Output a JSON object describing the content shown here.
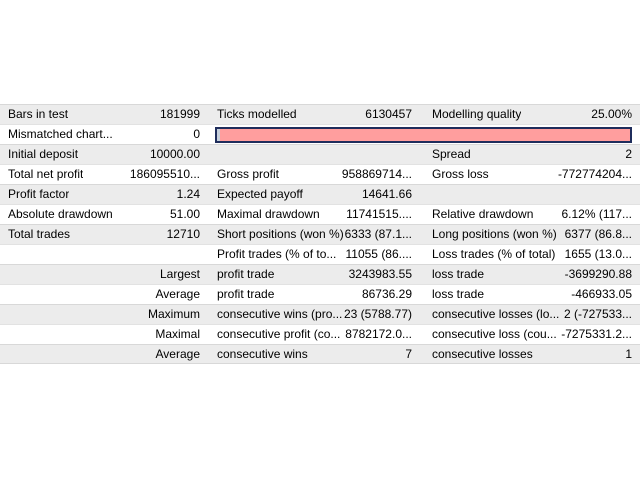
{
  "report": {
    "name": "strategy-tester-report",
    "colors": {
      "row_shade": "#ececec",
      "row_border": "#e0e0e0",
      "quality_bar_fill": "#ff9e9e",
      "quality_bar_border": "#1f2d5c"
    },
    "modelling_quality_bar": {
      "row_index": 1,
      "icon": "quality-bar"
    },
    "rows": [
      {
        "shaded": true,
        "bar": false,
        "cells": [
          "Bars in test",
          "181999",
          "Ticks modelled",
          "6130457",
          "Modelling quality",
          "25.00%"
        ]
      },
      {
        "shaded": false,
        "bar": true,
        "cells": [
          "Mismatched chart...",
          "0",
          "",
          "",
          "",
          ""
        ]
      },
      {
        "shaded": true,
        "bar": false,
        "cells": [
          "Initial deposit",
          "10000.00",
          "",
          "",
          "Spread",
          "2"
        ]
      },
      {
        "shaded": false,
        "bar": false,
        "cells": [
          "Total net profit",
          "186095510...",
          "Gross profit",
          "958869714...",
          "Gross loss",
          "-772774204..."
        ]
      },
      {
        "shaded": true,
        "bar": false,
        "cells": [
          "Profit factor",
          "1.24",
          "Expected payoff",
          "14641.66",
          "",
          ""
        ]
      },
      {
        "shaded": false,
        "bar": false,
        "cells": [
          "Absolute drawdown",
          "51.00",
          "Maximal drawdown",
          "11741515....",
          "Relative drawdown",
          "6.12% (117..."
        ]
      },
      {
        "shaded": true,
        "bar": false,
        "cells": [
          "Total trades",
          "12710",
          "Short positions (won %)",
          "6333 (87.1...",
          "Long positions (won %)",
          "6377 (86.8..."
        ]
      },
      {
        "shaded": false,
        "bar": false,
        "cells": [
          "",
          "",
          "Profit trades (% of to...",
          "11055 (86....",
          "Loss trades (% of total)",
          "1655 (13.0..."
        ]
      },
      {
        "shaded": true,
        "bar": false,
        "cells": [
          "",
          "Largest",
          "profit trade",
          "3243983.55",
          "loss trade",
          "-3699290.88"
        ]
      },
      {
        "shaded": false,
        "bar": false,
        "cells": [
          "",
          "Average",
          "profit trade",
          "86736.29",
          "loss trade",
          "-466933.05"
        ]
      },
      {
        "shaded": true,
        "bar": false,
        "cells": [
          "",
          "Maximum",
          "consecutive wins (pro...",
          "23 (5788.77)",
          "consecutive losses (lo...",
          "2 (-727533..."
        ]
      },
      {
        "shaded": false,
        "bar": false,
        "cells": [
          "",
          "Maximal",
          "consecutive profit (co...",
          "8782172.0...",
          "consecutive loss (cou...",
          "-7275331.2..."
        ]
      },
      {
        "shaded": true,
        "bar": false,
        "cells": [
          "",
          "Average",
          "consecutive wins",
          "7",
          "consecutive losses",
          "1"
        ]
      }
    ]
  }
}
